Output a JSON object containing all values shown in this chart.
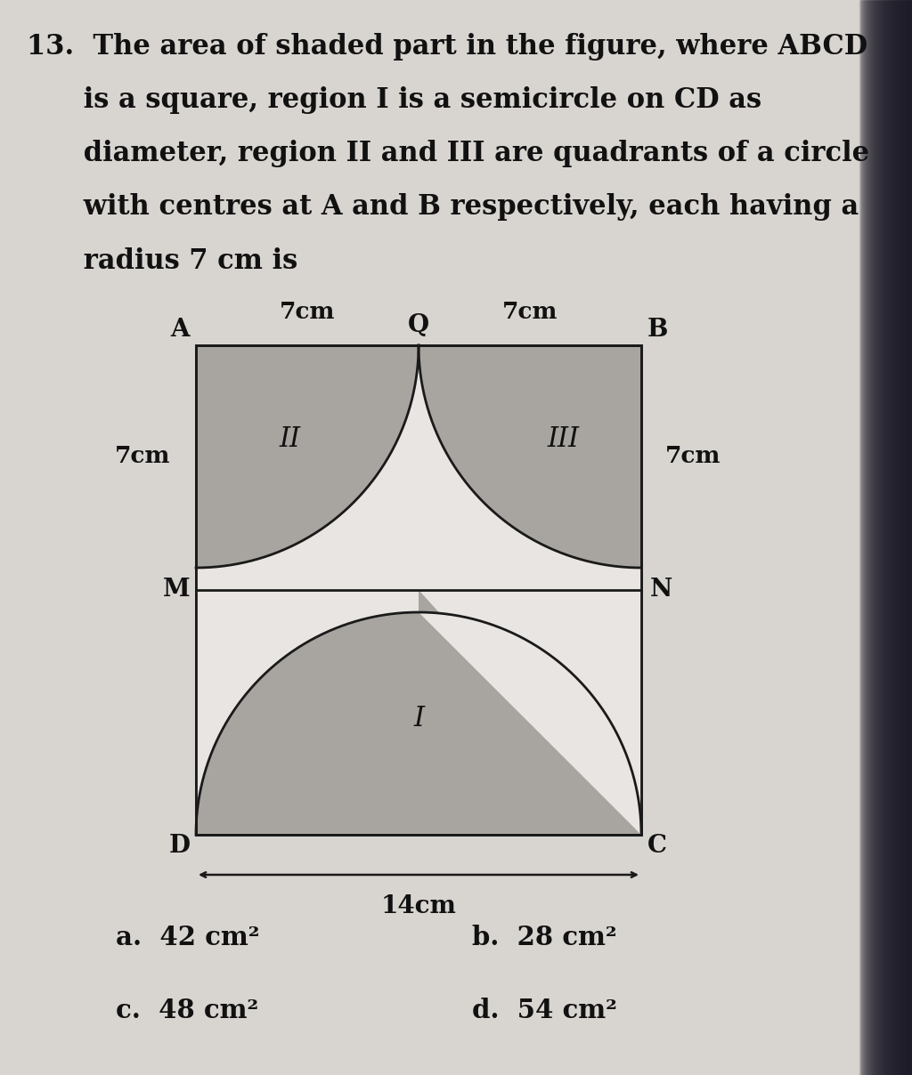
{
  "bg_color": "#d8d4d0",
  "bg_right_color": "#2a2a35",
  "shaded_color": "#a8a5a0",
  "white_color": "#e8e5e2",
  "line_color": "#1a1a1a",
  "text_color": "#111111",
  "title_lines": [
    "13.  The area of shaded part in the figure, where ABCD",
    "      is a square, region I is a semicircle on CD as",
    "      diameter, region II and III are quadrants of a circle",
    "      with centres at A and B respectively, each having a",
    "      radius 7 cm is"
  ],
  "answers": [
    [
      "a.  42 cm²",
      "b.  28 cm²"
    ],
    [
      "c.  48 cm²",
      "d.  54 cm²"
    ]
  ],
  "fig_width": 10.24,
  "fig_height": 12.08
}
